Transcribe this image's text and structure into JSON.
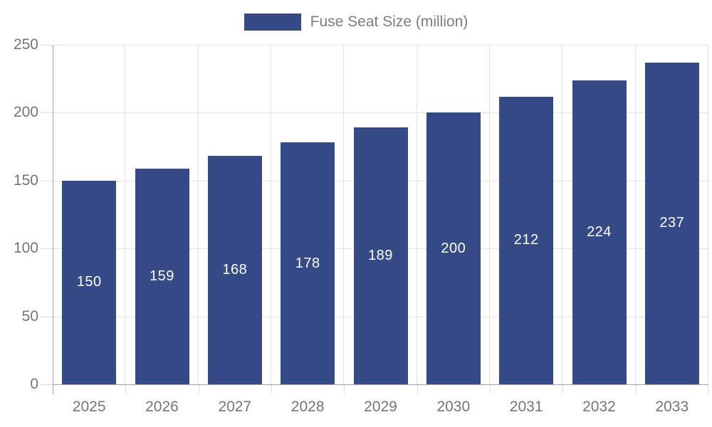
{
  "legend": {
    "series_label": "Fuse Seat Size (million)"
  },
  "chart_data": {
    "type": "bar",
    "title": "Fuse Seat Size (million)",
    "categories": [
      "2025",
      "2026",
      "2027",
      "2028",
      "2029",
      "2030",
      "2031",
      "2032",
      "2033"
    ],
    "values": [
      150,
      159,
      168,
      178,
      189,
      200,
      212,
      224,
      237
    ],
    "series": [
      {
        "name": "Fuse Seat Size (million)",
        "values": [
          150,
          159,
          168,
          178,
          189,
          200,
          212,
          224,
          237
        ]
      }
    ],
    "xlabel": "",
    "ylabel": "",
    "ylim": [
      0,
      250
    ],
    "yticks": [
      0,
      50,
      100,
      150,
      200,
      250
    ],
    "grid": true,
    "legend_position": "top-center",
    "value_label_position": "inside-center",
    "colors": {
      "bar": "#354a87",
      "bar_value_text": "#ffffff",
      "grid_line": "#e3e3e3",
      "axis_line": "#a3a3a3",
      "tick_mark": "#dcdcdc",
      "tick_label": "#757575",
      "legend_text": "#7d7d7d",
      "background": "#ffffff"
    }
  }
}
